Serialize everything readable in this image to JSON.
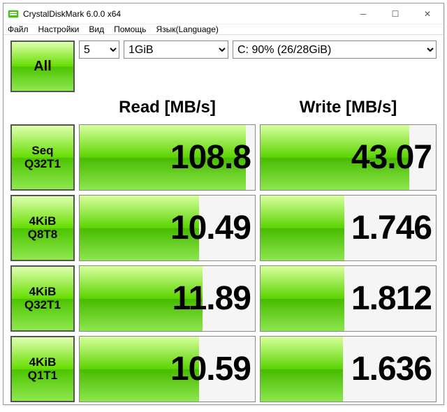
{
  "window": {
    "title": "CrystalDiskMark 6.0.0 x64"
  },
  "menu": {
    "file": "Файл",
    "settings": "Настройки",
    "view": "Вид",
    "help": "Помощь",
    "lang": "Язык(Language)"
  },
  "controls": {
    "all": "All",
    "runs": "5",
    "size": "1GiB",
    "drive": "C: 90% (26/28GiB)"
  },
  "headers": {
    "read": "Read [MB/s]",
    "write": "Write [MB/s]"
  },
  "rows": [
    {
      "label": "Seq\nQ32T1",
      "read": "108.8",
      "read_fill": 95,
      "write": "43.07",
      "write_fill": 85
    },
    {
      "label": "4KiB\nQ8T8",
      "read": "10.49",
      "read_fill": 68,
      "write": "1.746",
      "write_fill": 48
    },
    {
      "label": "4KiB\nQ32T1",
      "read": "11.89",
      "read_fill": 70,
      "write": "1.812",
      "write_fill": 48
    },
    {
      "label": "4KiB\nQ1T1",
      "read": "10.59",
      "read_fill": 68,
      "write": "1.636",
      "write_fill": 47
    }
  ],
  "colors": {
    "bar_gradient_top": "#d8ff9e",
    "bar_gradient_mid": "#5bd400",
    "bar_gradient_bot": "#8de64e",
    "cell_bg": "#f5f5f5",
    "border": "#888888"
  }
}
